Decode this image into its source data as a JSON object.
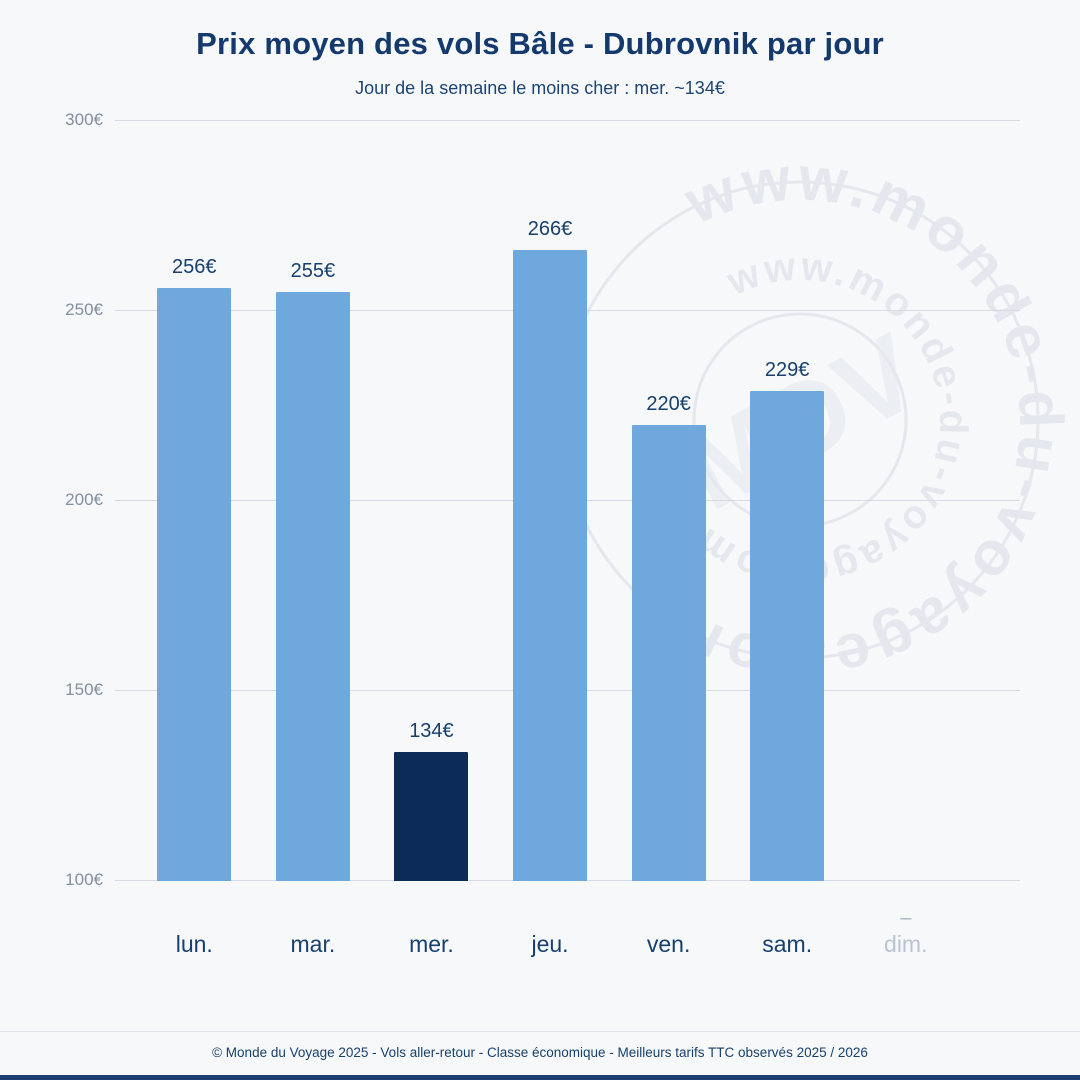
{
  "title": "Prix moyen des vols Bâle - Dubrovnik par jour",
  "subtitle": "Jour de la semaine le moins cher : mer. ~134€",
  "watermark": "www.monde-du-voyage.com",
  "watermark_center": "MDV",
  "footer": {
    "text": "© Monde du Voyage 2025 - Vols aller-retour - Classe économique - Meilleurs tarifs TTC observés 2025 / 2026"
  },
  "chart_data": {
    "type": "bar",
    "title": "Prix moyen des vols Bâle - Dubrovnik par jour",
    "subtitle": "Jour de la semaine le moins cher : mer. ~134€",
    "categories": [
      "lun.",
      "mar.",
      "mer.",
      "jeu.",
      "ven.",
      "sam.",
      "dim."
    ],
    "values": [
      256,
      255,
      134,
      266,
      220,
      229,
      null
    ],
    "value_labels": [
      "256€",
      "255€",
      "134€",
      "266€",
      "220€",
      "229€",
      null
    ],
    "no_data_marker": "–",
    "ylabel_ticks": [
      "100€",
      "150€",
      "200€",
      "250€",
      "300€"
    ],
    "ylim": [
      100,
      300
    ],
    "grid": true,
    "legend": "none",
    "bar_color": "#6FA8DC",
    "highlight_index": 2,
    "highlight_color": "#0D2B57",
    "unit": "€"
  }
}
